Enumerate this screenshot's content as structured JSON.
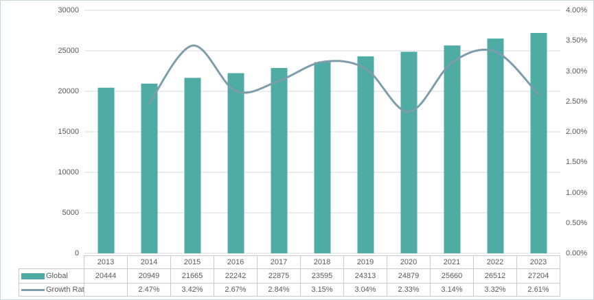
{
  "chart_data": {
    "type": "combo-bar-line",
    "title": "",
    "categories": [
      "2013",
      "2014",
      "2015",
      "2016",
      "2017",
      "2018",
      "2019",
      "2020",
      "2021",
      "2022",
      "2023"
    ],
    "series": [
      {
        "name": "Global",
        "chart": "bar",
        "axis": "left",
        "color": "#4eaca4",
        "values": [
          20444,
          20949,
          21665,
          22242,
          22875,
          23595,
          24313,
          24879,
          25660,
          26512,
          27204
        ],
        "display": [
          "20444",
          "20949",
          "21665",
          "22242",
          "22875",
          "23595",
          "24313",
          "24879",
          "25660",
          "26512",
          "27204"
        ]
      },
      {
        "name": "Growth Rate",
        "chart": "smooth-line",
        "axis": "right",
        "color": "#7e9dab",
        "values": [
          null,
          2.47,
          3.42,
          2.67,
          2.84,
          3.15,
          3.04,
          2.33,
          3.14,
          3.32,
          2.61
        ],
        "display": [
          "",
          "2.47%",
          "3.42%",
          "2.67%",
          "2.84%",
          "3.15%",
          "3.04%",
          "2.33%",
          "3.14%",
          "3.32%",
          "2.61%"
        ]
      }
    ],
    "left_axis": {
      "min": 0,
      "max": 30000,
      "step": 5000,
      "tick_labels": [
        "0",
        "5000",
        "10000",
        "15000",
        "20000",
        "25000",
        "30000"
      ]
    },
    "right_axis": {
      "min": 0,
      "max": 4,
      "step": 0.5,
      "tick_labels": [
        "0.00%",
        "0.50%",
        "1.00%",
        "1.50%",
        "2.00%",
        "2.50%",
        "3.00%",
        "3.50%",
        "4.00%"
      ]
    },
    "grid": true,
    "legend_position": "table-left"
  },
  "colors": {
    "bar": "#4eaca4",
    "line": "#7e9dab",
    "grid": "#dadada",
    "axis_text": "#595959",
    "table_border": "#c9c9c9",
    "frame_border": "#c8d6e0"
  }
}
